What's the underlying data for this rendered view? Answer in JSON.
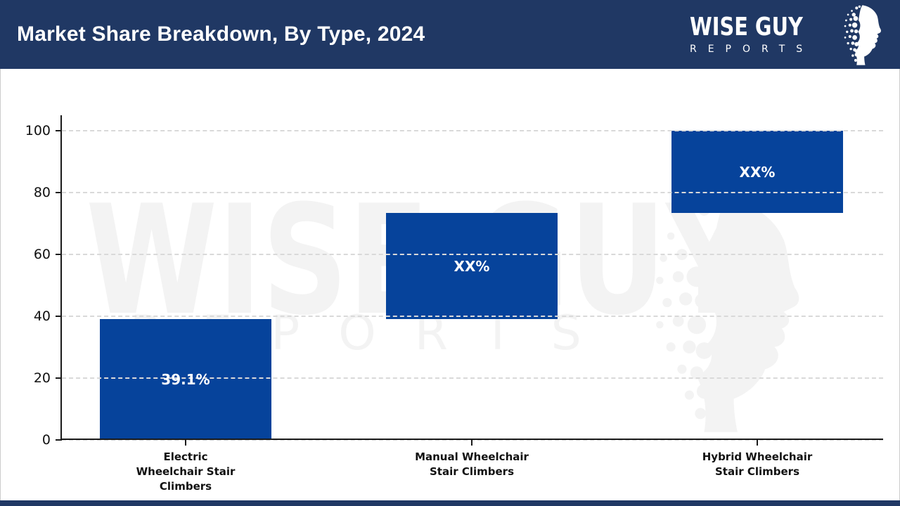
{
  "header": {
    "title": "Market Share Breakdown, By Type, 2024",
    "logo": {
      "wordmark": "WISE GUY",
      "subtext": "REPORTS"
    }
  },
  "watermark": {
    "line1": "WISE GUY",
    "line2": "REPORTS"
  },
  "colors": {
    "header_navy": "#203864",
    "bar_blue": "#06439b",
    "gridline_gray": "#d9d9d9",
    "axis_black": "#1a1a1a",
    "bar_label_white": "#ffffff",
    "watermark_gray": "#f3f3f3"
  },
  "chart_data": {
    "type": "bar",
    "subtype": "waterfall",
    "title": "Market Share Breakdown, By Type, 2024",
    "categories": [
      [
        "Electric",
        "Wheelchair Stair",
        "Climbers"
      ],
      [
        "Manual Wheelchair",
        "Stair Climbers"
      ],
      [
        "Hybrid Wheelchair",
        "Stair Climbers"
      ]
    ],
    "segments": [
      {
        "category": "Electric Wheelchair Stair Climbers",
        "start": 0,
        "end": 39.1,
        "label": "39.1%"
      },
      {
        "category": "Manual Wheelchair Stair Climbers",
        "start": 39.1,
        "end": 73.3,
        "label": "XX%"
      },
      {
        "category": "Hybrid Wheelchair Stair Climbers",
        "start": 73.3,
        "end": 100,
        "label": "XX%"
      }
    ],
    "unit": "%",
    "yticks": [
      0,
      20,
      40,
      60,
      80,
      100
    ],
    "ylim": [
      0,
      105
    ],
    "grid": "horizontal-dashed",
    "legend": "none",
    "bar_color": "#06439b"
  }
}
